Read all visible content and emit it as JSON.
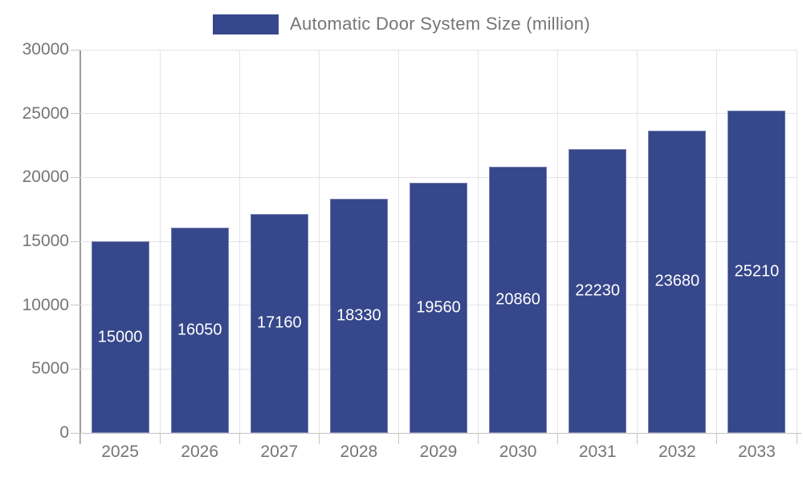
{
  "legend": {
    "label": "Automatic Door System Size (million)",
    "swatch_color": "#36478B"
  },
  "colors": {
    "bar": "#36478B",
    "bar_value_text": "#ffffff",
    "axis_text": "#757575",
    "gridline": "#e4e4e8",
    "y_axis_line": "#9a9a9a",
    "x_axis_line": "#c2c2c2",
    "background": "#ffffff"
  },
  "chart_data": {
    "type": "bar",
    "title": "Automatic Door System Size (million)",
    "categories": [
      "2025",
      "2026",
      "2027",
      "2028",
      "2029",
      "2030",
      "2031",
      "2032",
      "2033"
    ],
    "values": [
      15000,
      16050,
      17160,
      18330,
      19560,
      20860,
      22230,
      23680,
      25210
    ],
    "series": [
      {
        "name": "Automatic Door System Size (million)",
        "values": [
          15000,
          16050,
          17160,
          18330,
          19560,
          20860,
          22230,
          23680,
          25210
        ]
      }
    ],
    "xlabel": "",
    "ylabel": "",
    "ylim": [
      0,
      30000
    ],
    "yticks": [
      0,
      5000,
      10000,
      15000,
      20000,
      25000,
      30000
    ],
    "grid": true,
    "legend_position": "top",
    "value_labels": "inside-center"
  }
}
